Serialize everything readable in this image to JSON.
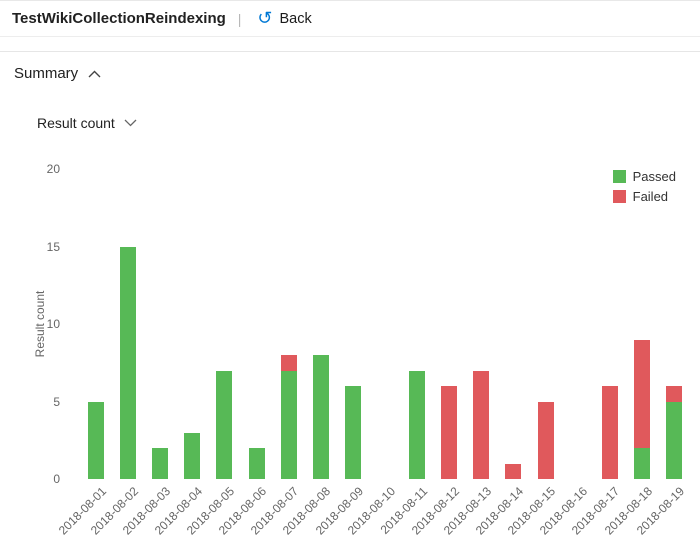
{
  "header": {
    "title": "TestWikiCollectionReindexing",
    "separator": "|",
    "back_label": "Back",
    "accent_color": "#0078d4"
  },
  "summary": {
    "title": "Summary",
    "collapsed": false
  },
  "chart": {
    "metric_label": "Result count"
  },
  "chart_data": {
    "type": "bar",
    "stacked": true,
    "title": "Result count",
    "xlabel": "",
    "ylabel": "Result count",
    "ylim": [
      0,
      20
    ],
    "yticks": [
      0,
      5,
      10,
      15,
      20
    ],
    "grid": false,
    "legend_position": "top-right",
    "categories": [
      "2018-08-01",
      "2018-08-02",
      "2018-08-03",
      "2018-08-04",
      "2018-08-05",
      "2018-08-06",
      "2018-08-07",
      "2018-08-08",
      "2018-08-09",
      "2018-08-10",
      "2018-08-11",
      "2018-08-12",
      "2018-08-13",
      "2018-08-14",
      "2018-08-15",
      "2018-08-16",
      "2018-08-17",
      "2018-08-18",
      "2018-08-19"
    ],
    "series": [
      {
        "name": "Passed",
        "color": "#57b956",
        "values": [
          5,
          15,
          2,
          3,
          7,
          2,
          7,
          8,
          6,
          0,
          7,
          0,
          0,
          0,
          0,
          0,
          0,
          2,
          5
        ]
      },
      {
        "name": "Failed",
        "color": "#e0595c",
        "values": [
          0,
          0,
          0,
          0,
          0,
          0,
          1,
          0,
          0,
          0,
          0,
          6,
          7,
          1,
          5,
          0,
          6,
          7,
          1
        ]
      }
    ]
  }
}
